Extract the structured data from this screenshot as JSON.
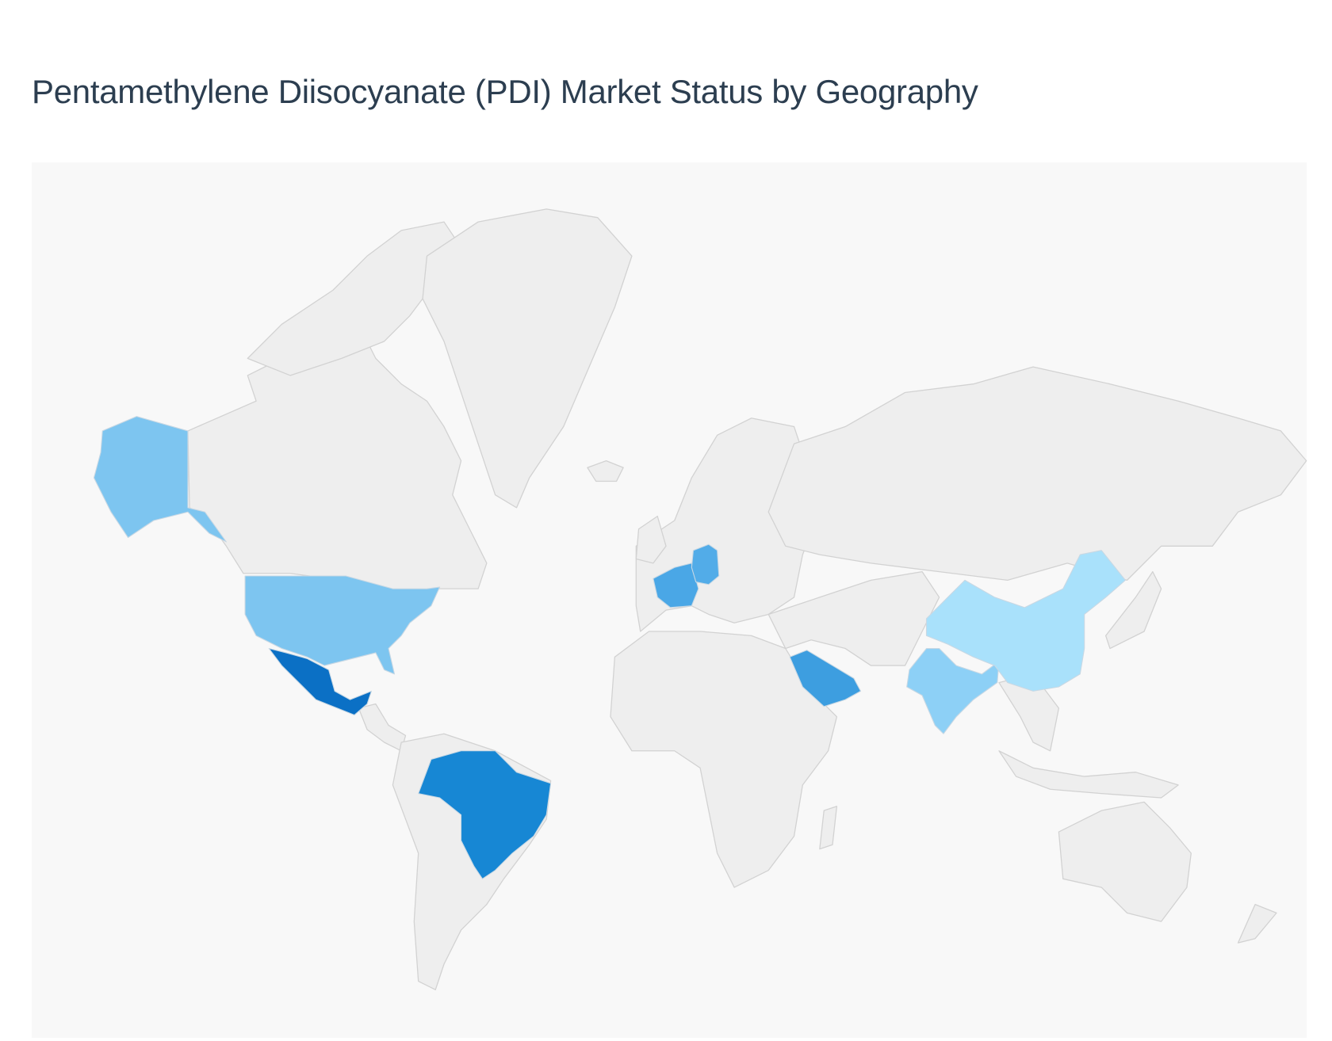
{
  "title": "Pentamethylene Diisocyanate (PDI) Market Status by Geography",
  "map": {
    "type": "choropleth",
    "projection": "world",
    "default_land_color": "#eeeeee",
    "border_color": "#d2d2d2",
    "background_color": "#f8f8f8",
    "highlighted_regions": [
      {
        "id": "united-states",
        "color": "#7dc5f0"
      },
      {
        "id": "mexico",
        "color": "#0b70c5"
      },
      {
        "id": "brazil",
        "color": "#1787d4"
      },
      {
        "id": "france",
        "color": "#4aa7e6"
      },
      {
        "id": "germany",
        "color": "#52ace8"
      },
      {
        "id": "saudi-arabia",
        "color": "#3d9ee0"
      },
      {
        "id": "india",
        "color": "#8dd0f6"
      },
      {
        "id": "china",
        "color": "#a9e1fb"
      }
    ]
  }
}
